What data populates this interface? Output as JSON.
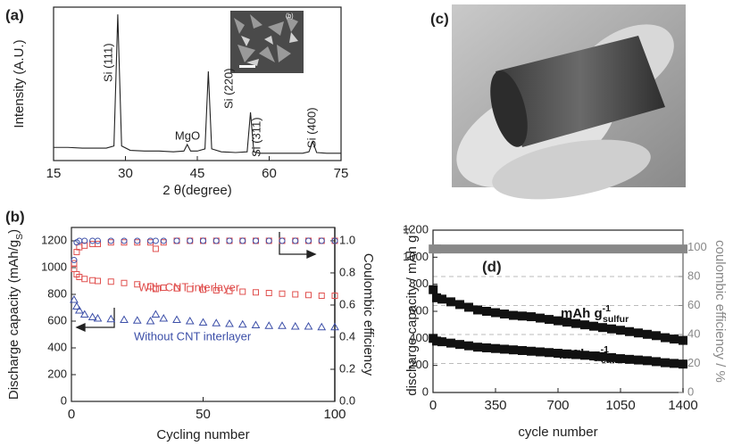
{
  "chart_data": [
    {
      "type": "line",
      "panel": "(a)",
      "inset_label": "(b)",
      "xlabel": "2 θ(degree)",
      "ylabel": "Intensity (A.U.)",
      "x": [
        15,
        18,
        21,
        24,
        26,
        27.6,
        28.4,
        29.2,
        31,
        34,
        37,
        40,
        42.2,
        42.9,
        43.6,
        45,
        46.6,
        47.3,
        48.0,
        50,
        53,
        55.4,
        56.1,
        56.8,
        58,
        61,
        64,
        67,
        68.3,
        69.1,
        69.9,
        72,
        75
      ],
      "series": [
        {
          "color": "#222222",
          "values": [
            9,
            9,
            8.5,
            8.5,
            8.5,
            10,
            100,
            10,
            7,
            6.5,
            6.5,
            6,
            6.5,
            11,
            6.5,
            6.5,
            8,
            61,
            8,
            6,
            5.5,
            6,
            33,
            6,
            5,
            5,
            5,
            5,
            6,
            13,
            5.5,
            5,
            5
          ]
        }
      ],
      "xlim": [
        15,
        75
      ],
      "xticks": [
        15,
        30,
        45,
        60,
        75
      ],
      "ylim": [
        0,
        105
      ],
      "annotations": [
        "Si (111)",
        "MgO",
        "Si (220)",
        "Si (311)",
        "Si (400)"
      ]
    },
    {
      "type": "scatter",
      "panel": "(b)",
      "xlabel": "Cycling number",
      "ylabel": {
        "text": "Discharge capacity (mAh/g",
        "sub": "S",
        "end": ")"
      },
      "y2label": "Coulombic efficiency",
      "x": [
        1,
        2,
        3,
        5,
        8,
        10,
        15,
        20,
        25,
        30,
        32,
        35,
        40,
        45,
        50,
        55,
        60,
        65,
        70,
        75,
        80,
        85,
        90,
        95,
        100
      ],
      "series": [
        {
          "name": "With CNT interlayer",
          "color": "#e0504f",
          "marker": "square",
          "values": [
            990,
            950,
            930,
            915,
            905,
            900,
            895,
            885,
            875,
            860,
            840,
            850,
            845,
            840,
            835,
            830,
            825,
            820,
            815,
            810,
            805,
            800,
            795,
            790,
            790
          ]
        },
        {
          "name": "Without CNT interlayer",
          "color": "#3c4fa8",
          "marker": "triangle",
          "values": [
            760,
            710,
            680,
            650,
            630,
            620,
            615,
            610,
            605,
            600,
            650,
            620,
            610,
            600,
            590,
            585,
            580,
            575,
            570,
            565,
            565,
            560,
            560,
            555,
            555
          ]
        },
        {
          "color": "#e0504f",
          "marker": "square",
          "axis": "y2",
          "values": [
            0.86,
            0.93,
            0.96,
            0.97,
            0.98,
            0.98,
            0.99,
            0.99,
            0.99,
            0.99,
            0.95,
            0.99,
            1,
            1,
            1,
            1,
            1,
            1,
            1,
            1,
            1,
            1,
            1,
            1,
            1
          ]
        },
        {
          "color": "#3c4fa8",
          "marker": "circle",
          "axis": "y2",
          "values": [
            0.88,
            0.99,
            1,
            1,
            1,
            1,
            1,
            1,
            1,
            1,
            1,
            1,
            1,
            1,
            1,
            1,
            1,
            1,
            1,
            1,
            1,
            1,
            1,
            1,
            1
          ]
        }
      ],
      "xlim": [
        0,
        100
      ],
      "xticks": [
        0,
        50,
        100
      ],
      "ylim": [
        0,
        1300
      ],
      "yticks": [
        0,
        200,
        400,
        600,
        800,
        1000,
        1200
      ],
      "y2lim": [
        0,
        1.083
      ],
      "y2ticks": [
        {
          "value": 0,
          "label": "0.0"
        },
        0.2,
        0.4,
        0.6,
        0.8,
        {
          "value": 1,
          "label": "1.0"
        }
      ]
    },
    {
      "type": "scatter",
      "panel": "(d)",
      "grid": true,
      "y2color": "#888888",
      "xlabel": "cycle number",
      "ylabel": {
        "text": "discharge capacity / mAh g",
        "sup": "-1"
      },
      "y2label": "coulombic efficiency / %",
      "x": [
        1,
        20,
        50,
        100,
        150,
        200,
        250,
        300,
        350,
        400,
        450,
        500,
        550,
        600,
        650,
        700,
        750,
        800,
        850,
        900,
        950,
        1000,
        1050,
        1100,
        1150,
        1200,
        1250,
        1300,
        1350,
        1400
      ],
      "series": [
        {
          "name": {
            "text": "mAh g",
            "sup": "-1",
            "sub": "sulfur"
          },
          "color": "#111111",
          "marker": "filled-square",
          "values": [
            760,
            700,
            690,
            670,
            650,
            630,
            610,
            600,
            590,
            580,
            570,
            565,
            560,
            550,
            540,
            530,
            520,
            510,
            500,
            490,
            480,
            470,
            460,
            450,
            440,
            430,
            420,
            405,
            395,
            385
          ]
        },
        {
          "name": {
            "text": "mAh g",
            "sup": "-1",
            "sub": "cathode"
          },
          "color": "#111111",
          "marker": "filled-square",
          "values": [
            400,
            380,
            375,
            365,
            355,
            345,
            335,
            330,
            325,
            320,
            315,
            310,
            305,
            300,
            295,
            290,
            285,
            280,
            275,
            270,
            265,
            258,
            250,
            245,
            240,
            235,
            228,
            220,
            215,
            210
          ]
        },
        {
          "color": "#888888",
          "marker": "filled-square",
          "axis": "y2",
          "values": [
            99,
            99,
            99,
            99,
            99,
            99,
            99,
            99,
            99,
            99,
            99,
            99,
            99,
            99,
            99,
            99,
            99,
            99,
            99,
            99,
            99,
            99,
            99,
            99,
            99,
            99,
            99,
            99,
            99,
            99
          ]
        }
      ],
      "xlim": [
        0,
        1400
      ],
      "xticks": [
        0,
        350,
        700,
        1050,
        1400
      ],
      "ylim": [
        0,
        1200
      ],
      "yticks": [
        0,
        200,
        400,
        600,
        800,
        1000,
        1200
      ],
      "y2lim": [
        0,
        112
      ],
      "y2ticks": [
        0,
        20,
        40,
        60,
        80,
        100
      ]
    }
  ],
  "photo": {
    "label": "(c)"
  }
}
